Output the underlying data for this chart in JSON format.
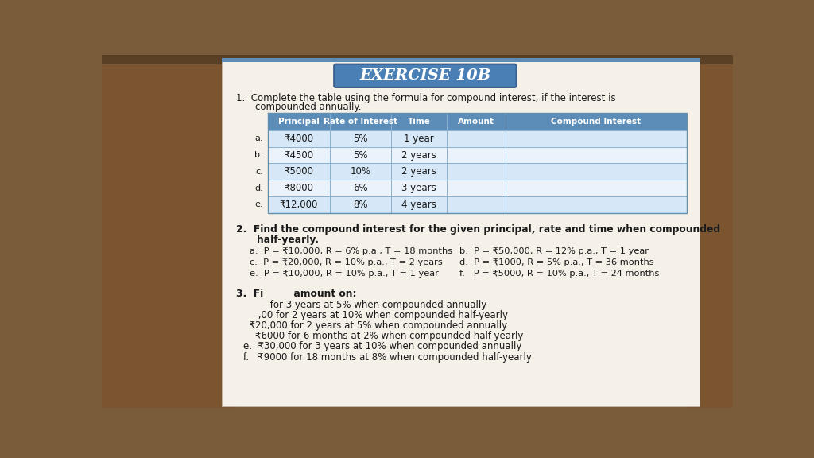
{
  "title": "EXERCISE 10B",
  "page_bg": "#e8e0d0",
  "cloth_bg": "#8b4513",
  "table_header_bg": "#5b8db8",
  "table_row_light": "#d6e8f7",
  "table_row_white": "#eaf3fb",
  "title_bg": "#4a7fb5",
  "title_text_color": "white",
  "body_text_color": "#1a1a1a",
  "header_text_color": "white",
  "table_headers": [
    "Principal",
    "Rate of Interest",
    "Time",
    "Amount",
    "Compound Interest"
  ],
  "table_rows": [
    [
      "₹4000",
      "5%",
      "1 year",
      "",
      ""
    ],
    [
      "₹4500",
      "5%",
      "2 years",
      "",
      ""
    ],
    [
      "₹5000",
      "10%",
      "2 years",
      "",
      ""
    ],
    [
      "₹8000",
      "6%",
      "3 years",
      "",
      ""
    ],
    [
      "₹12,000",
      "8%",
      "4 years",
      "",
      ""
    ]
  ],
  "row_labels": [
    "a.",
    "b.",
    "c.",
    "d.",
    "e."
  ],
  "q1_line1": "1.  Complete the table using the formula for compound interest, if the interest is",
  "q1_line2": "    compounded annually.",
  "q2_bold": "2.  Find the compound interest for the given principal, rate and time when compounded",
  "q2_bold2": "    half-yearly.",
  "q2_left": [
    "a.  P = ₹10,000, R = 6% p.a., T = 18 months",
    "c.  P = ₹20,000, R = 10% p.a., T = 2 years",
    "e.  P = ₹10,000, R = 10% p.a., T = 1 year"
  ],
  "q2_right": [
    "b.  P = ₹50,000, R = 12% p.a., T = 1 year",
    "d.  P = ₹1000, R = 5% p.a., T = 36 months",
    "f.   P = ₹5000, R = 10% p.a., T = 24 months"
  ],
  "q3_header": "3.  Fi         amount on:",
  "q3_items": [
    "         for 3 years at 5% when compounded annually",
    "     ,00 for 2 years at 10% when compounded half-yearly",
    "  ₹20,000 for 2 years at 5% when compounded annually",
    "    ₹6000 for 6 months at 2% when compounded half-yearly",
    "e.  ₹30,000 for 3 years at 10% when compounded annually",
    "f.   ₹9000 for 18 months at 8% when compounded half-yearly"
  ]
}
